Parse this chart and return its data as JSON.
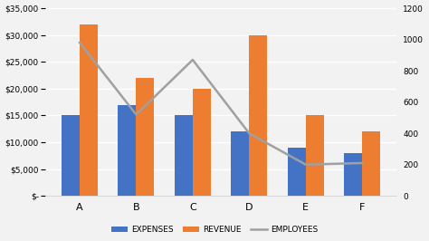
{
  "categories": [
    "A",
    "B",
    "C",
    "D",
    "E",
    "F"
  ],
  "expenses": [
    15000,
    17000,
    15000,
    12000,
    9000,
    8000
  ],
  "revenue": [
    32000,
    22000,
    20000,
    30000,
    15000,
    12000
  ],
  "employees": [
    980,
    520,
    870,
    400,
    200,
    210
  ],
  "expenses_color": "#4472C4",
  "revenue_color": "#ED7D31",
  "employees_color": "#A0A0A0",
  "left_ylim": [
    0,
    35000
  ],
  "right_ylim": [
    0,
    1200
  ],
  "left_yticks": [
    0,
    5000,
    10000,
    15000,
    20000,
    25000,
    30000,
    35000
  ],
  "right_yticks": [
    0,
    200,
    400,
    600,
    800,
    1000,
    1200
  ],
  "legend_labels": [
    "EXPENSES",
    "REVENUE",
    "EMPLOYEES"
  ],
  "background_color": "#F2F2F2",
  "plot_bg_color": "#F2F2F2",
  "grid_color": "#FFFFFF",
  "bar_width": 0.32
}
